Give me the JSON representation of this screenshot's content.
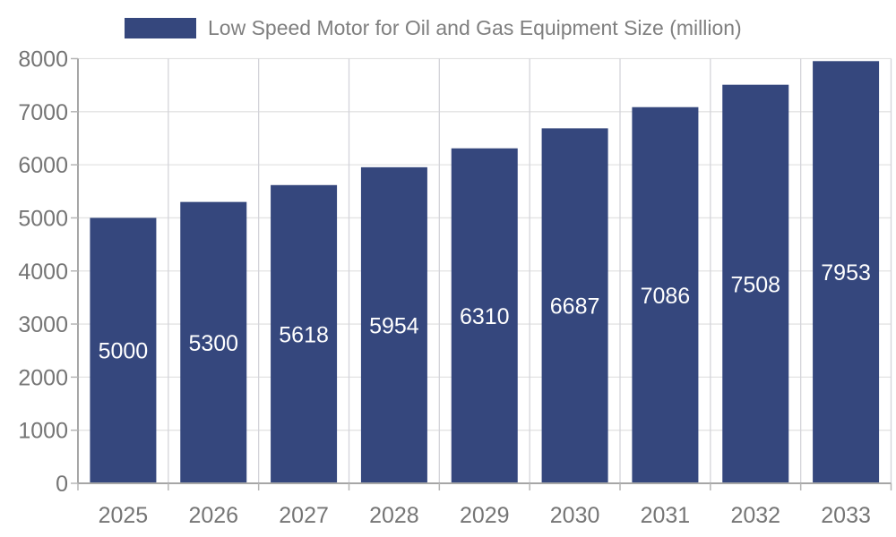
{
  "legend": {
    "label": "Low Speed Motor for Oil and Gas Equipment Size (million)"
  },
  "colors": {
    "bar": "#35477d",
    "grid_horizontal": "#e3e3e3",
    "grid_vertical": "#d4d4da",
    "axis": "#a6a6a6",
    "tick": "#b5b5b5",
    "tick_label": "#757575",
    "legend_text": "#7f7f7f",
    "value_label": "#ffffff",
    "background": "#ffffff"
  },
  "chart_data": {
    "type": "bar",
    "title": "Low Speed Motor for Oil and Gas Equipment Size (million)",
    "categories": [
      "2025",
      "2026",
      "2027",
      "2028",
      "2029",
      "2030",
      "2031",
      "2032",
      "2033"
    ],
    "values": [
      5000,
      5300,
      5618,
      5954,
      6310,
      6687,
      7086,
      7508,
      7953
    ],
    "value_labels_shown": true,
    "xlabel": "",
    "ylabel": "",
    "ylim": [
      0,
      8000
    ],
    "ytick_step": 1000,
    "yticks": [
      0,
      1000,
      2000,
      3000,
      4000,
      5000,
      6000,
      7000,
      8000
    ],
    "grid": true,
    "legend_position": "top-left"
  }
}
